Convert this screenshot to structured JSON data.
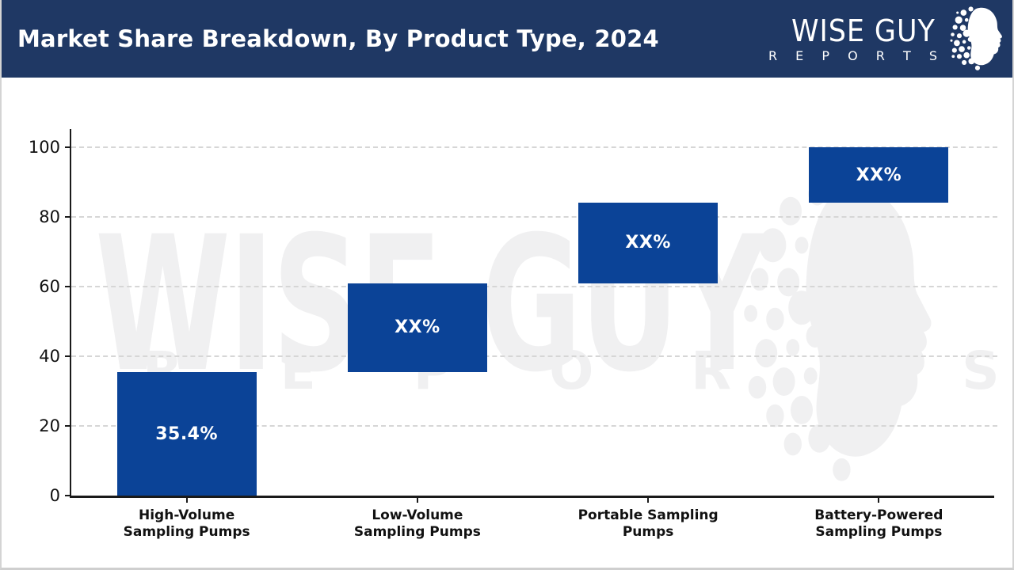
{
  "header": {
    "title": "Market Share Breakdown, By Product Type, 2024",
    "bg_color": "#1f3864",
    "logo": {
      "line1": "WISE GUY",
      "line2": "R E P O R T S"
    }
  },
  "watermark": {
    "line1": "WISE GUY",
    "line2": "R E P O R T S"
  },
  "chart_data": {
    "type": "bar",
    "subtype": "waterfall",
    "title": "Market Share Breakdown, By Product Type, 2024",
    "categories": [
      "High-Volume Sampling Pumps",
      "Low-Volume Sampling Pumps",
      "Portable Sampling Pumps",
      "Battery-Powered Sampling Pumps"
    ],
    "category_label_lines": [
      [
        "High-Volume",
        "Sampling Pumps"
      ],
      [
        "Low-Volume",
        "Sampling Pumps"
      ],
      [
        "Portable Sampling",
        "Pumps"
      ],
      [
        "Battery-Powered",
        "Sampling Pumps"
      ]
    ],
    "segments": [
      {
        "start": 0,
        "end": 35.4,
        "label": "35.4%"
      },
      {
        "start": 35.4,
        "end": 61,
        "label": "XX%"
      },
      {
        "start": 61,
        "end": 84,
        "label": "XX%"
      },
      {
        "start": 84,
        "end": 100,
        "label": "XX%"
      }
    ],
    "ylim": [
      0,
      100
    ],
    "yticks": [
      0,
      20,
      40,
      60,
      80,
      100
    ],
    "grid": "horizontal-dashed",
    "legend": "none",
    "bar_color": "#0b4397",
    "bar_label_color": "#ffffff",
    "axis_color": "#1a1a1a",
    "gridline_color": "#d6d6d6"
  }
}
